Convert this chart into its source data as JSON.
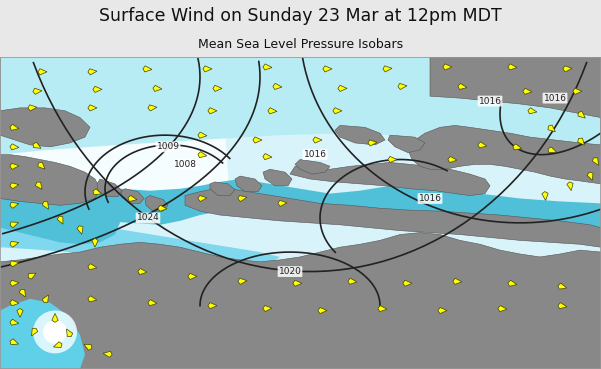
{
  "title": "Surface Wind on Sunday 23 Mar at 12pm MDT",
  "subtitle": "Mean Sea Level Pressure Isobars",
  "title_fontsize": 12.5,
  "subtitle_fontsize": 9,
  "title_color": "#111111",
  "header_bg": "#e8e8e8",
  "map_border": "#999999",
  "isobar_color": "#222222",
  "wind_arrow_color": "#ffff00",
  "wind_arrow_edge": "#444400",
  "figsize": [
    6.01,
    3.69
  ],
  "dpi": 100,
  "colors": {
    "ocean_white": "#f0fbff",
    "ocean_very_light": "#d8f4fa",
    "ocean_light": "#b8ecf5",
    "ocean_mid": "#80d8ee",
    "ocean_teal": "#50c0d8",
    "ocean_dark_teal": "#30a8c8",
    "ocean_deep": "#20809a",
    "land_light": "#aaaaaa",
    "land_mid": "#888888",
    "land_dark": "#666666",
    "land_darker": "#555555",
    "storm_cyan": "#60d0e8",
    "storm_bright": "#c0f0f8",
    "storm_white": "#e8faff"
  }
}
